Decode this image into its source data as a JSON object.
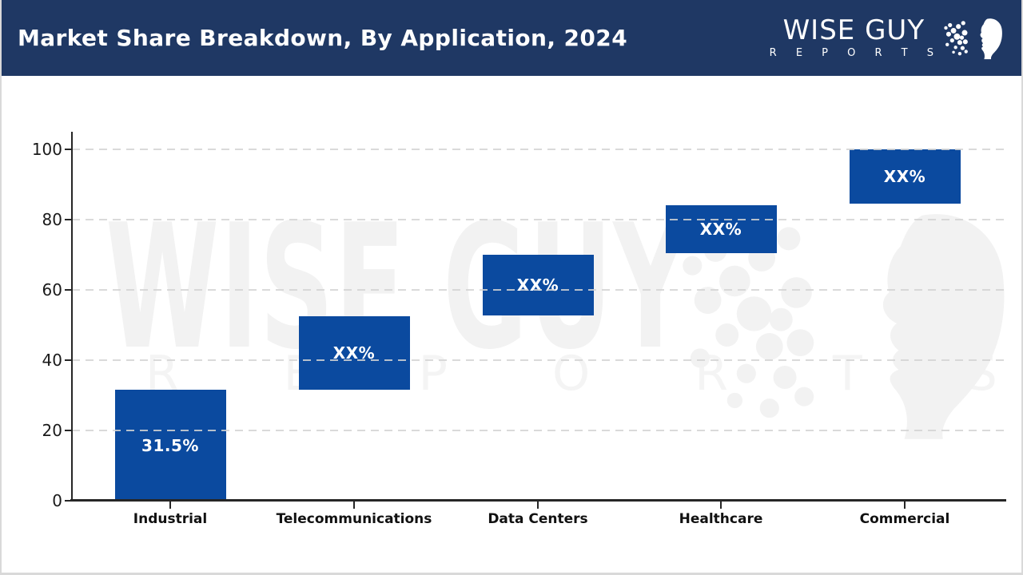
{
  "header": {
    "title": "Market Share Breakdown, By Application, 2024",
    "bg_color": "#1f3864",
    "logo": {
      "line1": "WISE GUY",
      "line2": "R E P O R T S"
    }
  },
  "watermark": {
    "line1": "WISE GUY",
    "line2": "R E P O R T S",
    "color": "#f2f2f2"
  },
  "chart_data": {
    "type": "bar",
    "subtype": "waterfall",
    "title": "Market Share Breakdown, By Application, 2024",
    "xlabel": "",
    "ylabel": "",
    "ylim": [
      0,
      100
    ],
    "yticks": [
      0,
      20,
      40,
      60,
      80,
      100
    ],
    "grid": "horizontal dashed",
    "bar_color": "#0b4a9f",
    "bar_label_color": "#ffffff",
    "categories": [
      "Industrial",
      "Telecommunications",
      "Data Centers",
      "Healthcare",
      "Commercial"
    ],
    "segments": [
      {
        "category": "Industrial",
        "start": 0,
        "end": 31.5,
        "label": "31.5%"
      },
      {
        "category": "Telecommunications",
        "start": 31.5,
        "end": 52.5,
        "label": "XX%"
      },
      {
        "category": "Data Centers",
        "start": 52.7,
        "end": 70,
        "label": "XX%"
      },
      {
        "category": "Healthcare",
        "start": 70.5,
        "end": 84.2,
        "label": "XX%"
      },
      {
        "category": "Commercial",
        "start": 84.5,
        "end": 100,
        "label": "XX%"
      }
    ]
  }
}
